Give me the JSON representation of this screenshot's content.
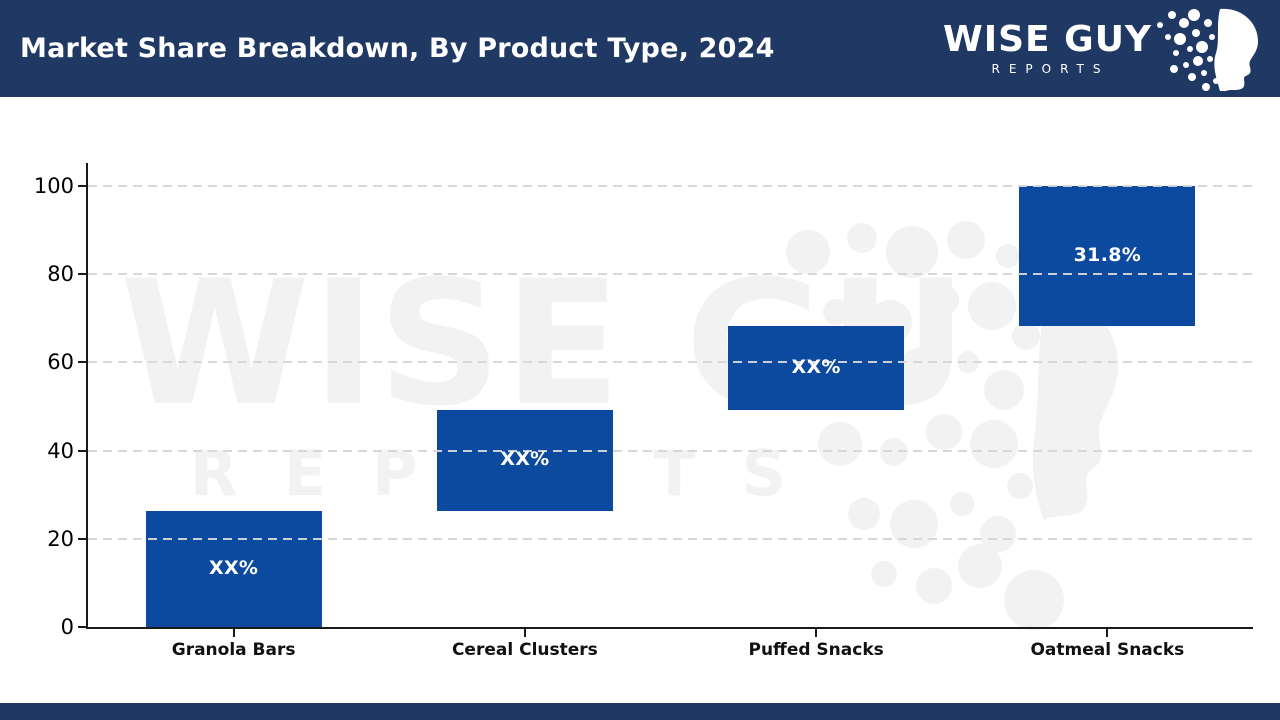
{
  "header": {
    "title": "Market Share Breakdown, By Product Type, 2024",
    "logo": {
      "line1": "WISE GUY",
      "line2": "REPORTS"
    }
  },
  "watermark": {
    "line1": "WISE GU",
    "line2": "REPORTS"
  },
  "colors": {
    "header_bg": "#1f3864",
    "footer_bg": "#1f3864",
    "bar": "#0b4a9e",
    "grid": "#d6d6d6",
    "axis": "#1a1a1a",
    "watermark": "#f2f2f2",
    "bar_label": "#ffffff"
  },
  "chart_data": {
    "type": "bar",
    "subtype": "floating-waterfall",
    "title": "Market Share Breakdown, By Product Type, 2024",
    "categories": [
      "Granola Bars",
      "Cereal Clusters",
      "Puffed Snacks",
      "Oatmeal Snacks"
    ],
    "segments": [
      {
        "category": "Granola Bars",
        "start": 0,
        "end": 26.4,
        "label": "XX%"
      },
      {
        "category": "Cereal Clusters",
        "start": 26.4,
        "end": 49.2,
        "label": "XX%"
      },
      {
        "category": "Puffed Snacks",
        "start": 49.2,
        "end": 68.2,
        "label": "XX%"
      },
      {
        "category": "Oatmeal Snacks",
        "start": 68.2,
        "end": 100,
        "label": "31.8%"
      }
    ],
    "xlabel": "",
    "ylabel": "",
    "ylim": [
      0,
      100
    ],
    "yticks": [
      0,
      20,
      40,
      60,
      80,
      100
    ],
    "grid": "horizontal-dashed",
    "legend": "none",
    "bar_color": "#0b4a9e",
    "value_label_color": "#ffffff"
  }
}
